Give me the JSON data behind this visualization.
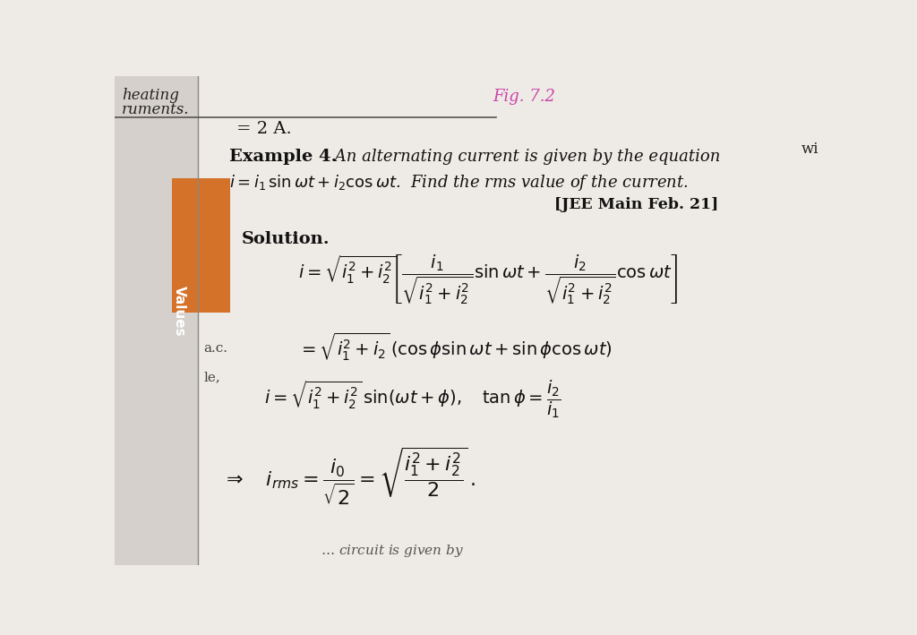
{
  "bg_color": "#eeeae5",
  "left_sidebar_color": "#d5d0cb",
  "orange_tab_color": "#d4722a",
  "fig_label": "Fig. 7.2",
  "fig_label_color": "#cc44aa",
  "line1": "= 2 A.",
  "left_col_text1": "heating",
  "left_col_text2": "ruments.",
  "right_col_text": "wi",
  "sidebar_text": "Values",
  "sidebar_text2": "a.c.",
  "sidebar_text3": "le,",
  "example_bold": "Example 4.",
  "example_text": " An alternating current is given by the equation",
  "jee_ref": "[JEE Main Feb. 21]",
  "solution_label": "Solution.",
  "title_fontsize": 13,
  "body_fontsize": 13,
  "math_fontsize": 13
}
